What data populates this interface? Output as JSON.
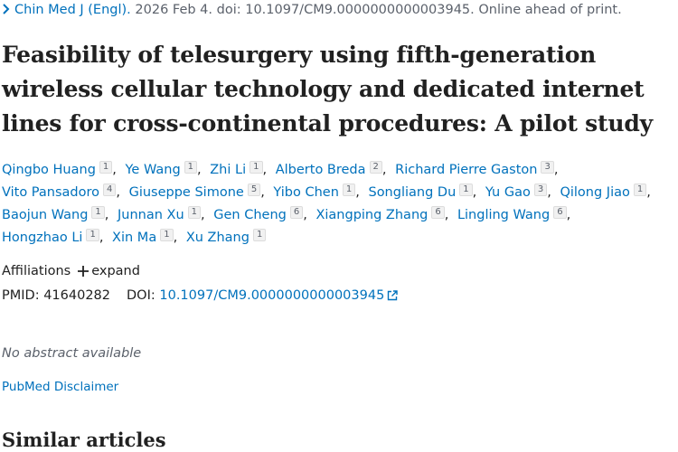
{
  "citation": {
    "journal": "Chin Med J (Engl).",
    "details": "2026 Feb 4. doi: 10.1097/CM9.0000000000003945. Online ahead of print."
  },
  "title": "Feasibility of telesurgery using fifth-generation wireless cellular technology and dedicated internet lines for cross-continental procedures: A pilot study",
  "author_separator": ",",
  "authors": [
    {
      "name": "Qingbo Huang",
      "affiliation": "1"
    },
    {
      "name": "Ye Wang",
      "affiliation": "1"
    },
    {
      "name": "Zhi Li",
      "affiliation": "1"
    },
    {
      "name": "Alberto Breda",
      "affiliation": "2"
    },
    {
      "name": "Richard Pierre Gaston",
      "affiliation": "3"
    },
    {
      "name": "Vito Pansadoro",
      "affiliation": "4"
    },
    {
      "name": "Giuseppe Simone",
      "affiliation": "5"
    },
    {
      "name": "Yibo Chen",
      "affiliation": "1"
    },
    {
      "name": "Songliang Du",
      "affiliation": "1"
    },
    {
      "name": "Yu Gao",
      "affiliation": "3"
    },
    {
      "name": "Qilong Jiao",
      "affiliation": "1"
    },
    {
      "name": "Baojun Wang",
      "affiliation": "1"
    },
    {
      "name": "Junnan Xu",
      "affiliation": "1"
    },
    {
      "name": "Gen Cheng",
      "affiliation": "6"
    },
    {
      "name": "Xiangping Zhang",
      "affiliation": "6"
    },
    {
      "name": "Lingling Wang",
      "affiliation": "6"
    },
    {
      "name": "Hongzhao Li",
      "affiliation": "1"
    },
    {
      "name": "Xin Ma",
      "affiliation": "1"
    },
    {
      "name": "Xu Zhang",
      "affiliation": "1"
    }
  ],
  "affiliations": {
    "label": "Affiliations",
    "expand": "expand"
  },
  "identifiers": {
    "pmid_label": "PMID:",
    "pmid": "41640282",
    "doi_label": "DOI:",
    "doi": "10.1097/CM9.0000000000003945"
  },
  "abstract": "No abstract available",
  "disclaimer": "PubMed Disclaimer",
  "similar_heading": "Similar articles"
}
